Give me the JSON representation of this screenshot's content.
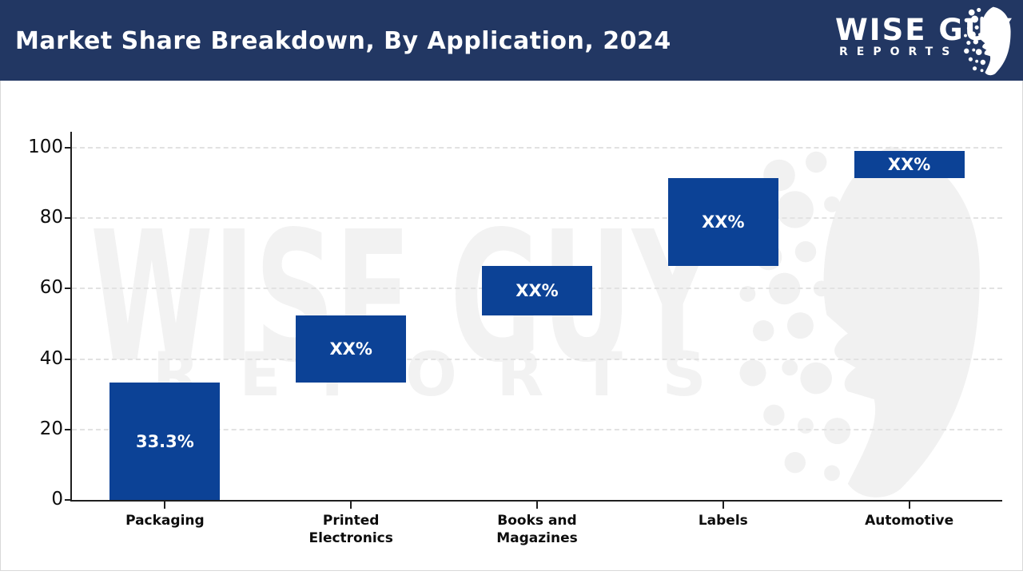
{
  "header": {
    "title": "Market Share Breakdown, By Application, 2024",
    "bg_color": "#223763",
    "logo": {
      "line1": "WISE GUY",
      "line2": "REPORTS"
    }
  },
  "watermark": {
    "line1": "WISE GUY",
    "line2": "REPORTS"
  },
  "chart_data": {
    "type": "bar",
    "subtype": "floating-waterfall",
    "title": "Market Share Breakdown, By Application, 2024",
    "categories": [
      "Packaging",
      "Printed\nElectronics",
      "Books and\nMagazines",
      "Labels",
      "Automotive"
    ],
    "segments": [
      {
        "category": "Packaging",
        "start": 0,
        "end": 33.3,
        "label": "33.3%"
      },
      {
        "category": "Printed Electronics",
        "start": 33.3,
        "end": 52.4,
        "label": "XX%"
      },
      {
        "category": "Books and Magazines",
        "start": 52.4,
        "end": 66.4,
        "label": "XX%"
      },
      {
        "category": "Labels",
        "start": 66.4,
        "end": 91.3,
        "label": "XX%"
      },
      {
        "category": "Automotive",
        "start": 91.3,
        "end": 99.0,
        "label": "XX%"
      }
    ],
    "yticks": [
      0,
      20,
      40,
      60,
      80,
      100
    ],
    "ylim": [
      0,
      104.5
    ],
    "grid": "dashed-horizontal",
    "legend": "none",
    "bar_color": "#0c4296",
    "bar_label_color": "#ffffff",
    "axis_color": "#1f1f1f",
    "grid_color": "#e2e2e2"
  }
}
